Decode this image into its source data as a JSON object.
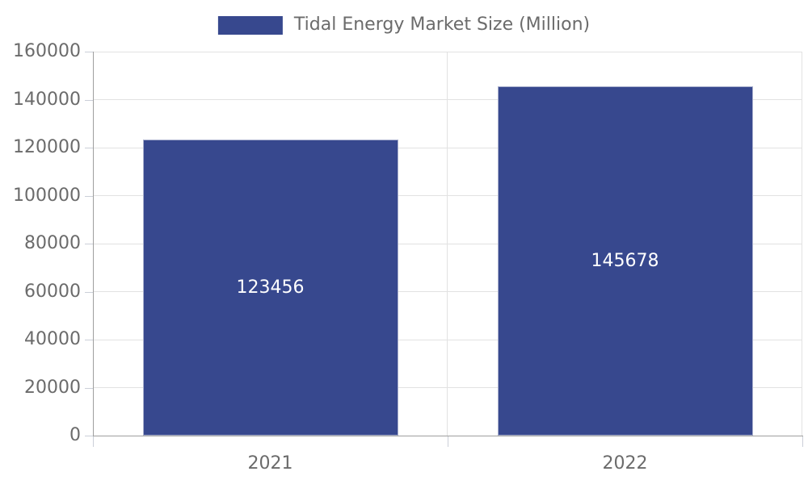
{
  "legend": {
    "label": "Tidal Energy Market Size (Million)"
  },
  "chart_data": {
    "type": "bar",
    "title": "Tidal Energy Market Size (Million)",
    "categories": [
      "2021",
      "2022"
    ],
    "values": [
      123456,
      145678
    ],
    "bar_labels": [
      "123456",
      "145678"
    ],
    "xlabel": "",
    "ylabel": "",
    "ylim": [
      0,
      160000
    ],
    "ytick_step": 20000,
    "yticks": [
      0,
      20000,
      40000,
      60000,
      80000,
      100000,
      120000,
      140000,
      160000
    ],
    "legend_position": "top-center",
    "grid": true,
    "bar_label_position": "inside-center",
    "colors": {
      "bar_fill": "#37488E",
      "bar_edge": "#A9B0CD",
      "bar_label_text": "#FFFFFF",
      "axis_line": "#9E9E9E",
      "grid_line": "#E2E2E2",
      "tick_mark": "#CBCFD8",
      "tick_label_text": "#6B6B6B",
      "legend_text": "#6B6B6B",
      "background": "#FFFFFF"
    }
  }
}
